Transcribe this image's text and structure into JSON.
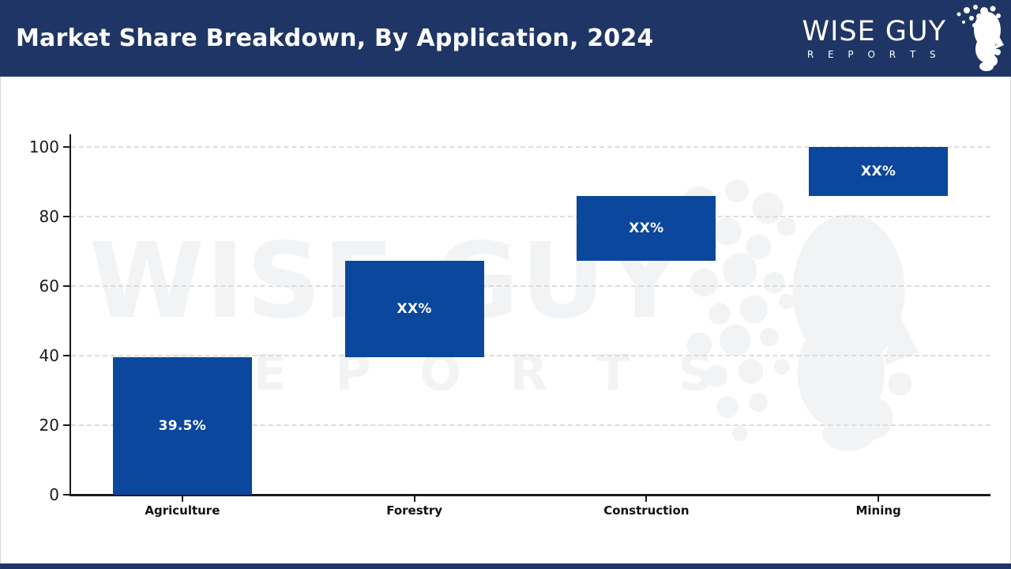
{
  "header": {
    "title": "Market Share Breakdown, By Application, 2024",
    "logo": {
      "line1": "WISE GUY",
      "line2": "R E P O R T S"
    }
  },
  "watermark": {
    "line1": "WISE GUY",
    "line2": "R E P O R T S"
  },
  "colors": {
    "header_bg": "#1f3565",
    "footer_bg": "#1f3565",
    "bar": "#0b479c",
    "bar_label": "#ffffff",
    "grid": "#dcdcdc",
    "axis": "#1a1a1a",
    "watermark": "#f2f3f4"
  },
  "chart_data": {
    "type": "bar",
    "subtype": "waterfall",
    "title": "Market Share Breakdown, By Application, 2024",
    "categories": [
      "Agriculture",
      "Forestry",
      "Construction",
      "Mining"
    ],
    "segments": [
      {
        "category": "Agriculture",
        "start": 0,
        "end": 39.5,
        "label": "39.5%"
      },
      {
        "category": "Forestry",
        "start": 39.5,
        "end": 67.3,
        "label": "XX%"
      },
      {
        "category": "Construction",
        "start": 67.3,
        "end": 86.0,
        "label": "XX%"
      },
      {
        "category": "Mining",
        "start": 86.0,
        "end": 100,
        "label": "XX%"
      }
    ],
    "y_ticks": [
      0,
      20,
      40,
      60,
      80,
      100
    ],
    "ylim": [
      0,
      103.6
    ],
    "xlabel": "",
    "ylabel": "",
    "grid": "horizontal-dashed",
    "legend": "none"
  }
}
